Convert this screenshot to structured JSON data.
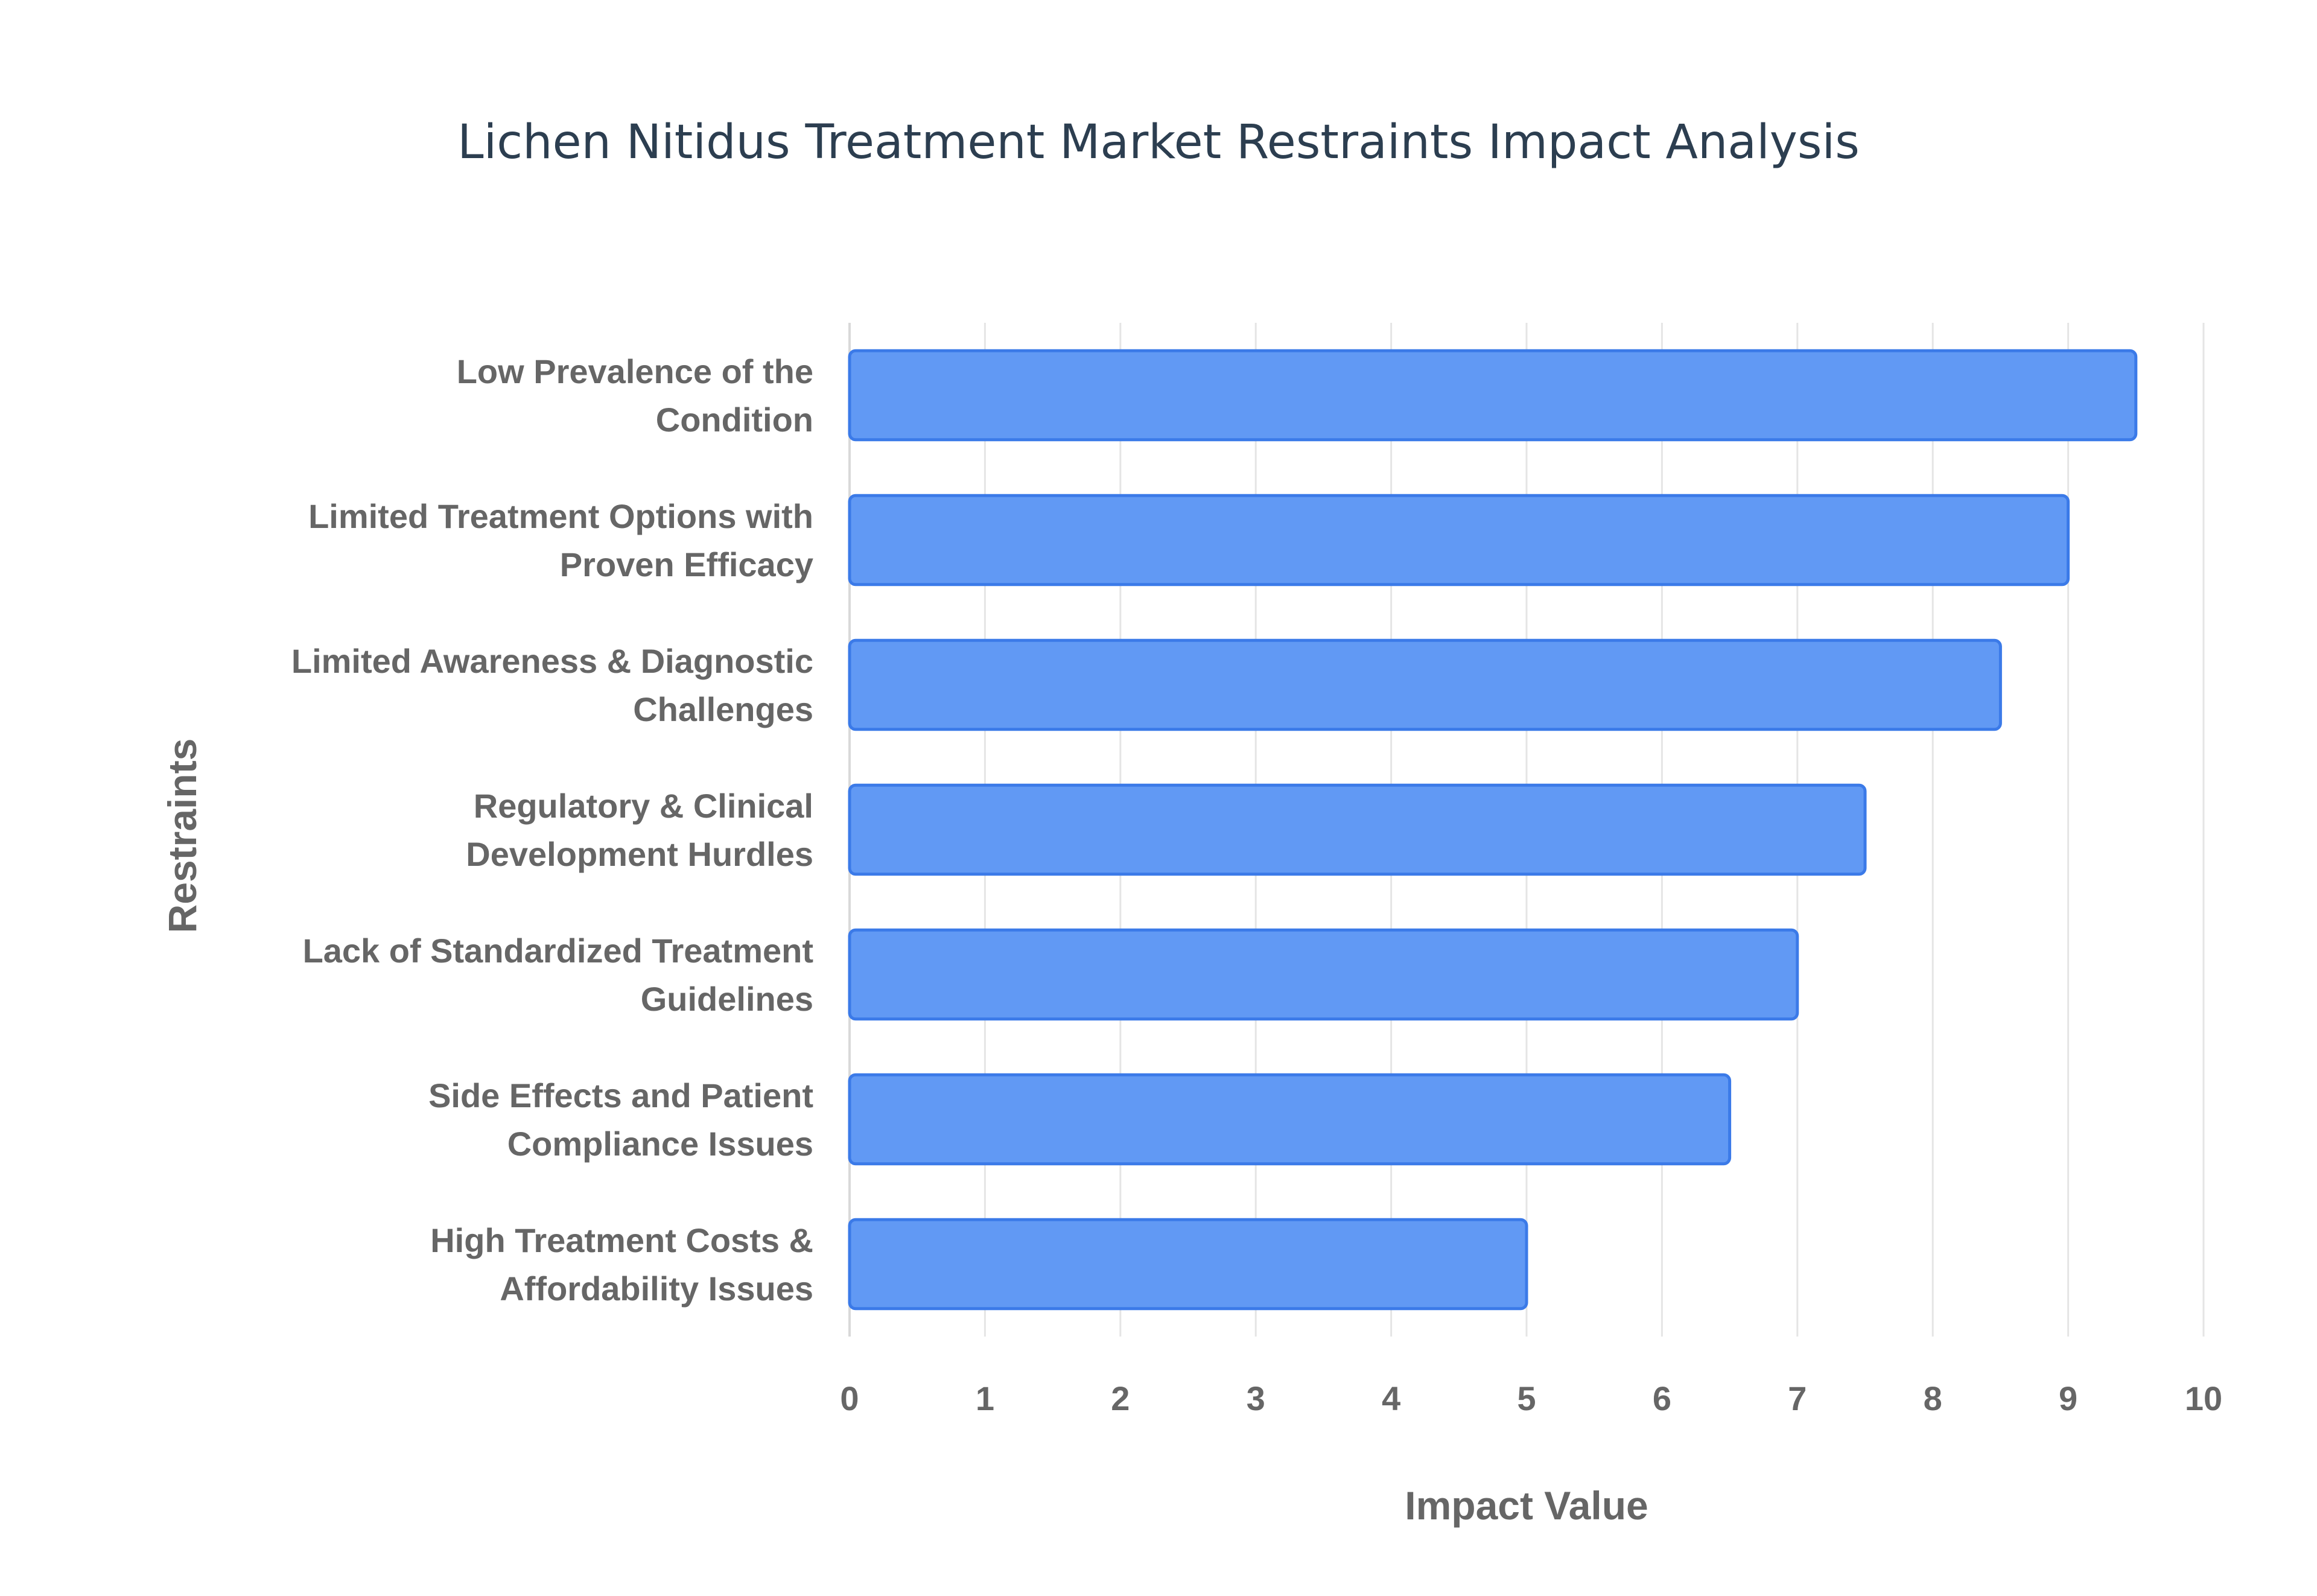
{
  "chart_data": {
    "type": "bar",
    "orientation": "horizontal",
    "title": "Lichen Nitidus Treatment Market Restraints Impact Analysis",
    "xlabel": "Impact Value",
    "ylabel": "Restraints",
    "xlim": [
      0,
      10
    ],
    "x_ticks": [
      "0",
      "1",
      "2",
      "3",
      "4",
      "5",
      "6",
      "7",
      "8",
      "9",
      "10"
    ],
    "grid": true,
    "legend": "none",
    "categories": [
      [
        "Low Prevalence of the",
        "Condition"
      ],
      [
        "Limited Treatment Options with",
        "Proven Efficacy"
      ],
      [
        "Limited Awareness & Diagnostic",
        "Challenges"
      ],
      [
        "Regulatory & Clinical",
        "Development Hurdles"
      ],
      [
        "Lack of Standardized Treatment",
        "Guidelines"
      ],
      [
        "Side Effects and Patient",
        "Compliance Issues"
      ],
      [
        "High Treatment Costs &",
        "Affordability Issues"
      ]
    ],
    "values": [
      9.5,
      9,
      8.5,
      7.5,
      7,
      6.5,
      5
    ],
    "bar_color": "#6199f4",
    "bar_border_color": "#3b7ae8"
  }
}
